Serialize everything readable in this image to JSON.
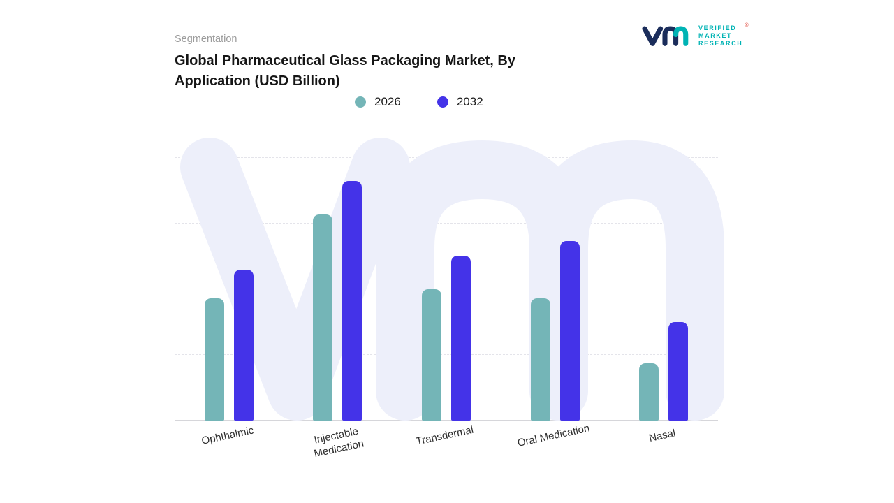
{
  "header": {
    "eyebrow": "Segmentation",
    "title_lines": [
      "Global Pharmaceutical Glass Packaging Market, By",
      "Application (USD Billion)"
    ]
  },
  "logo": {
    "lines": [
      "VERIFIED",
      "MARKET",
      "RESEARCH"
    ],
    "registered": "®",
    "navy": "#1b2d5b",
    "teal": "#00b3b4",
    "registered_color": "#e2574c"
  },
  "colors": {
    "watermark": "#edeffa",
    "series_2026": "#74b5b7",
    "series_2032": "#4433e8"
  },
  "chart_data": {
    "type": "bar",
    "title": "Global Pharmaceutical Glass Packaging Market, By Application (USD Billion)",
    "xlabel": "",
    "ylabel": "USD Billion",
    "categories": [
      "Ophthalmic",
      "Injectable Medication",
      "Transdermal",
      "Oral Medication",
      "Nasal"
    ],
    "series": [
      {
        "name": "2026",
        "color": "#74b5b7",
        "values": [
          51,
          86,
          55,
          51,
          24
        ]
      },
      {
        "name": "2032",
        "color": "#4433e8",
        "values": [
          63,
          100,
          69,
          75,
          41
        ]
      }
    ],
    "ylim": [
      0,
      110
    ],
    "grid": "horizontal-dashed",
    "legend_position": "top-center",
    "value_axis_labels_visible": false
  }
}
